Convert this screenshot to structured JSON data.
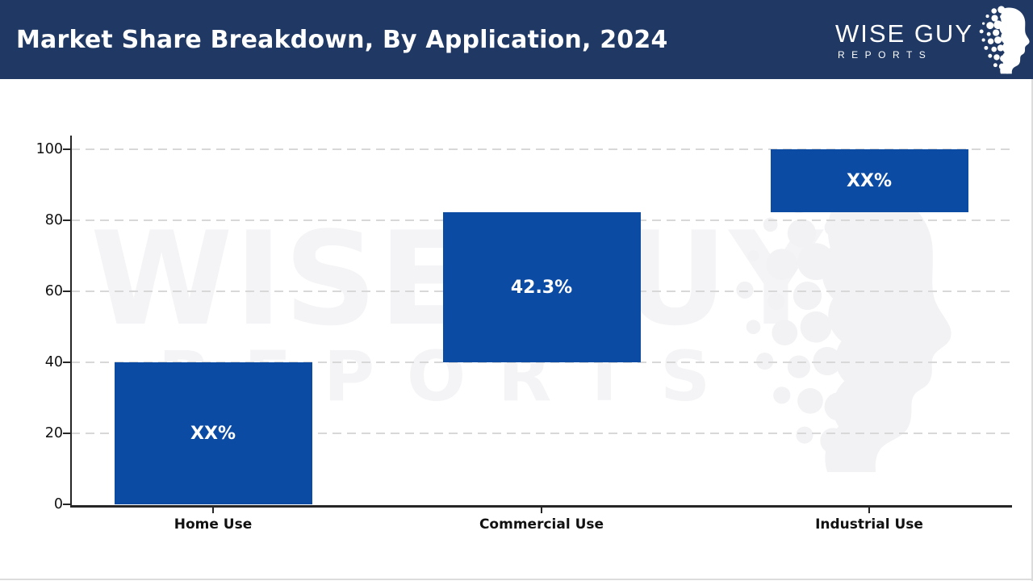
{
  "header": {
    "title": "Market Share Breakdown, By Application, 2024",
    "logo": {
      "line1": "WISE GUY",
      "line2": "REPORTS"
    }
  },
  "watermark": {
    "line1": "WISE GUY",
    "line2": "REPORTS"
  },
  "theme": {
    "header_bg": "#1f3864",
    "bar_color": "#0c4ba3",
    "grid_color": "#d8d8d8",
    "axis_color": "#262626",
    "tick_label_color": "#111111",
    "bar_label_color": "#ffffff",
    "watermark_color": "#f4f4f6"
  },
  "chart_data": {
    "type": "bar",
    "variant": "floating-waterfall",
    "title": "Market Share Breakdown, By Application, 2024",
    "categories": [
      "Home Use",
      "Commercial Use",
      "Industrial Use"
    ],
    "bars": [
      {
        "category": "Home Use",
        "base": 0,
        "top": 39.9,
        "label": "XX%"
      },
      {
        "category": "Commercial Use",
        "base": 39.9,
        "top": 82.2,
        "label": "42.3%"
      },
      {
        "category": "Industrial Use",
        "base": 82.2,
        "top": 100,
        "label": "XX%"
      }
    ],
    "segment_values": [
      39.9,
      42.3,
      17.8
    ],
    "ylim": [
      0,
      104
    ],
    "yticks": [
      0,
      20,
      40,
      60,
      80,
      100
    ],
    "xlabel": "",
    "ylabel": "",
    "grid": "horizontal-dashed",
    "legend": "none"
  }
}
